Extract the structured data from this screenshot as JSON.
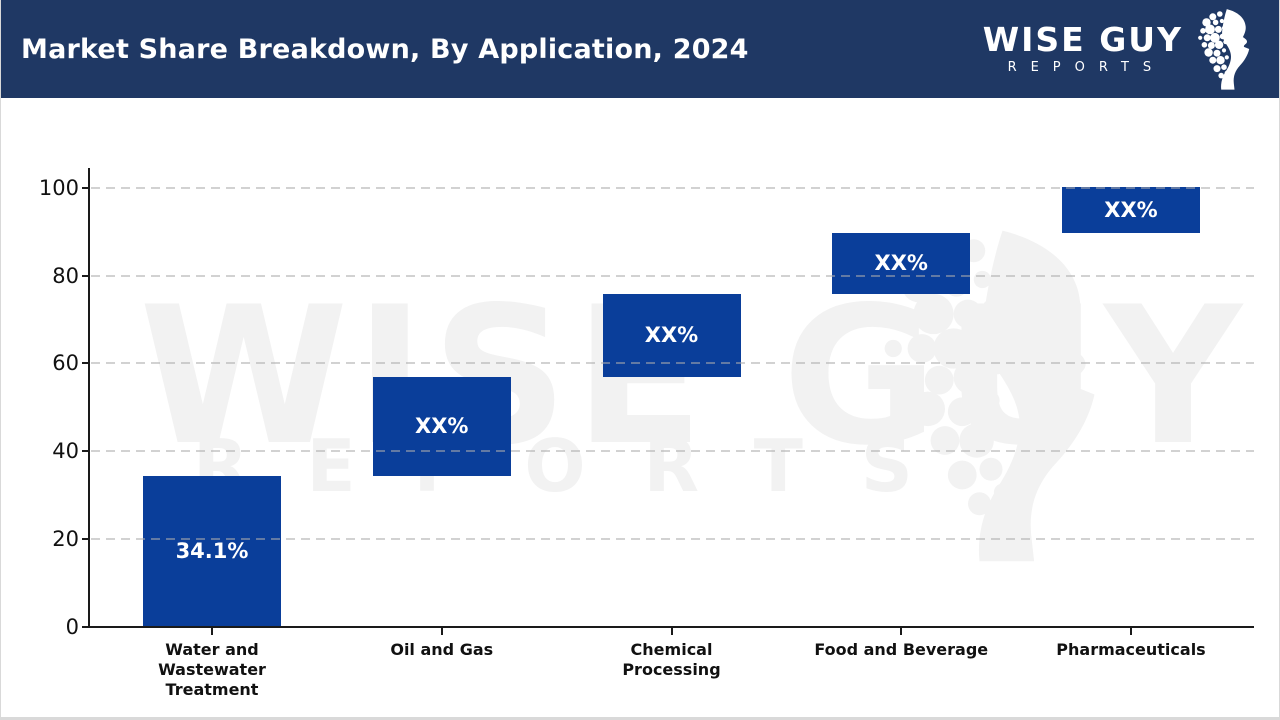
{
  "header": {
    "title": "Market Share Breakdown, By Application, 2024",
    "logo": {
      "line1": "WISE GUY",
      "line2": "REPORTS"
    }
  },
  "watermark": {
    "line1": "WISE GUY",
    "line2": "REPORTS"
  },
  "colors": {
    "header_bg": "#1f3864",
    "bar": "#0a3e9a",
    "bar_label": "#ffffff",
    "axis": "#1a1a1a",
    "grid": "#acacac",
    "watermark": "#f2f2f2"
  },
  "chart_data": {
    "type": "bar",
    "subtype": "waterfall",
    "title": "Market Share Breakdown, By Application, 2024",
    "categories": [
      "Water and Wastewater Treatment",
      "Oil and Gas",
      "Chemical Processing",
      "Food and Beverage",
      "Pharmaceuticals"
    ],
    "category_display": [
      "Water and\nWastewater\nTreatment",
      "Oil and Gas",
      "Chemical\nProcessing",
      "Food and Beverage",
      "Pharmaceuticals"
    ],
    "segments": [
      {
        "start": 0,
        "end": 34.1
      },
      {
        "start": 34.1,
        "end": 56.8
      },
      {
        "start": 56.8,
        "end": 75.6
      },
      {
        "start": 75.6,
        "end": 89.5
      },
      {
        "start": 89.5,
        "end": 100
      }
    ],
    "bar_labels": [
      "34.1%",
      "XX%",
      "XX%",
      "XX%",
      "XX%"
    ],
    "xlabel": "",
    "ylabel": "",
    "ylim": [
      0,
      100
    ],
    "yticks": [
      0,
      20,
      40,
      60,
      80,
      100
    ],
    "grid": "horizontal dashed, drawn over bars",
    "legend": "none"
  }
}
